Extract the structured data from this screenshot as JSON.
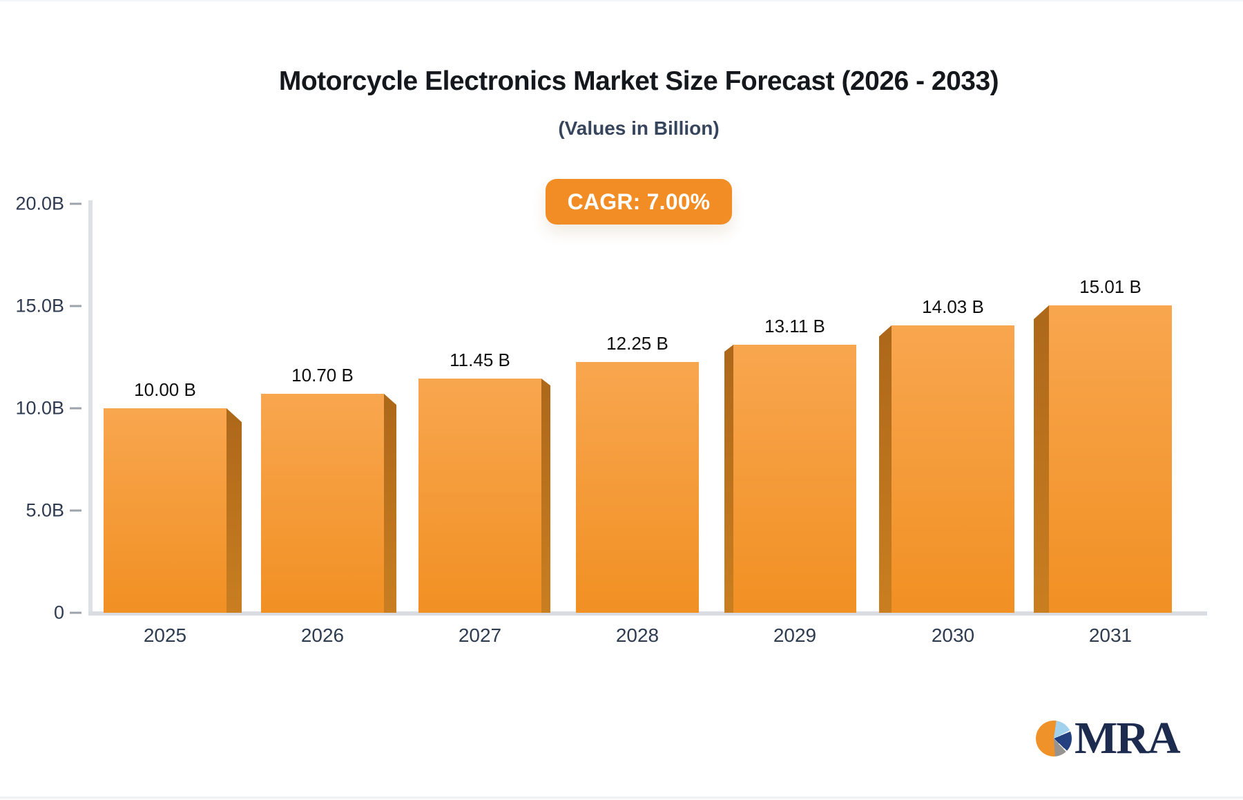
{
  "title": "Motorcycle Electronics Market Size Forecast (2026 - 2033)",
  "subtitle": "(Values in Billion)",
  "badge": {
    "label": "CAGR: 7.00%"
  },
  "chart_data": {
    "type": "bar",
    "categories": [
      "2025",
      "2026",
      "2027",
      "2028",
      "2029",
      "2030",
      "2031"
    ],
    "values": [
      10.0,
      10.7,
      11.45,
      12.25,
      13.11,
      14.03,
      15.01
    ],
    "bar_labels": [
      "10.00 B",
      "10.70 B",
      "11.45 B",
      "12.25 B",
      "13.11 B",
      "14.03 B",
      "15.01 B"
    ],
    "title": "Motorcycle Electronics Market Size Forecast (2026 - 2033)",
    "xlabel": "",
    "ylabel": "",
    "ylim": [
      0,
      20
    ],
    "y_tick_labels": [
      "20.0B",
      "15.0B",
      "10.0B",
      "5.0B",
      "0"
    ],
    "y_tick_values": [
      20,
      15,
      10,
      5,
      0
    ],
    "grid": false,
    "legend": false,
    "style": "3d-perspective-bars"
  },
  "colors": {
    "bar_face_top": "#f8a64f",
    "bar_face_bottom": "#f19023",
    "bar_side_top": "#ad671a",
    "bar_side_bottom": "#c97e20",
    "badge_bg": "#f28d26",
    "axis": "#dde1e6",
    "label_dark": "#2f3b50"
  },
  "logo": {
    "text": "MRA",
    "icon": "pie-chart"
  }
}
